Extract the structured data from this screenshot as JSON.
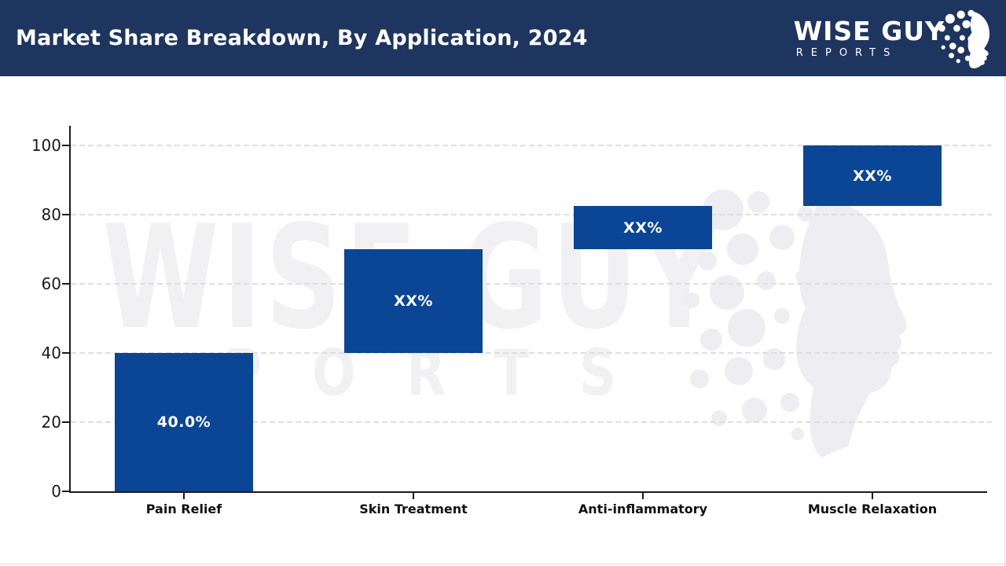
{
  "header": {
    "title": "Market Share Breakdown, By Application, 2024",
    "logo": {
      "brand_top": "WISE GUY",
      "brand_bottom": "REPORTS"
    }
  },
  "watermark": {
    "big_text": "WISE GUY",
    "small_text": "PORTS"
  },
  "colors": {
    "header_bg": "#1e3560",
    "bar": "#0a4596",
    "bar_label": "#ffffff",
    "grid": "#dedede",
    "axis": "#1a1a1a",
    "watermark": "#f1f1f4"
  },
  "chart_data": {
    "type": "bar",
    "subtype": "waterfall",
    "title": "Market Share Breakdown, By Application, 2024",
    "categories": [
      "Pain Relief",
      "Skin Treatment",
      "Anti-inflammatory",
      "Muscle Relaxation"
    ],
    "bars": [
      {
        "category": "Pain Relief",
        "start": 0,
        "end": 40,
        "value": 40,
        "label": "40.0%"
      },
      {
        "category": "Skin Treatment",
        "start": 40,
        "end": 70,
        "value": 30,
        "label": "XX%"
      },
      {
        "category": "Anti-inflammatory",
        "start": 70,
        "end": 82.5,
        "value": 12.5,
        "label": "XX%"
      },
      {
        "category": "Muscle Relaxation",
        "start": 82.5,
        "end": 100,
        "value": 17.5,
        "label": "XX%"
      }
    ],
    "xlabel": "",
    "ylabel": "",
    "yticks": [
      0,
      20,
      40,
      60,
      80,
      100
    ],
    "ylim": [
      0,
      106
    ],
    "grid": "horizontal-dashed",
    "legend": "none"
  }
}
